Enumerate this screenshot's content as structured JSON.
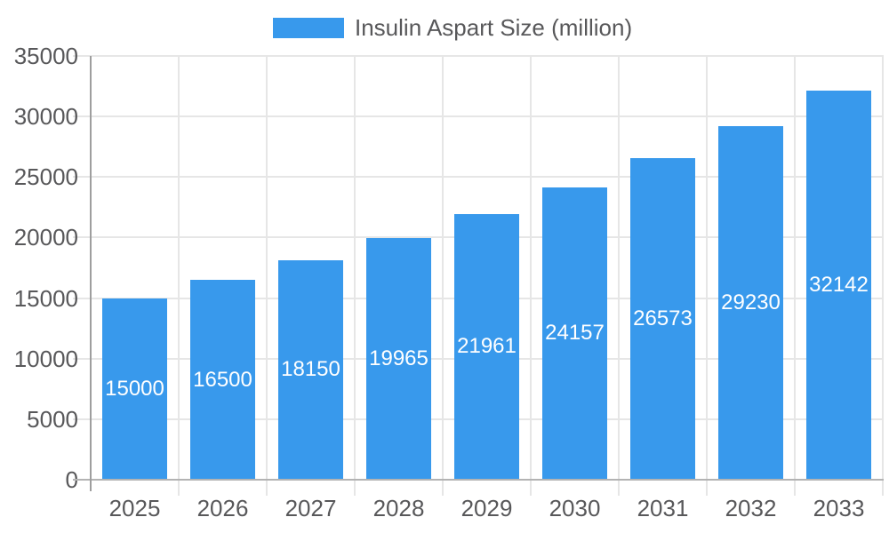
{
  "legend": {
    "label": "Insulin Aspart Size (million)"
  },
  "colors": {
    "bar": "#3899EC",
    "grid": "#E6E6E6",
    "x_axis": "#B3B3B3",
    "y_axis": "#9E9E9E",
    "axis_text": "#58585a",
    "bar_label_text": "#FFFFFF",
    "background": "#FFFFFF"
  },
  "chart_data": {
    "type": "bar",
    "title": "",
    "xlabel": "",
    "ylabel": "",
    "categories": [
      "2025",
      "2026",
      "2027",
      "2028",
      "2029",
      "2030",
      "2031",
      "2032",
      "2033"
    ],
    "series": [
      {
        "name": "Insulin Aspart Size (million)",
        "values": [
          15000,
          16500,
          18150,
          19965,
          21961,
          24157,
          26573,
          29230,
          32142
        ]
      }
    ],
    "bar_value_labels": [
      "15000",
      "16500",
      "18150",
      "19965",
      "21961",
      "24157",
      "26573",
      "29230",
      "32142"
    ],
    "ylim": [
      0,
      35000
    ],
    "yticks": [
      0,
      5000,
      10000,
      15000,
      20000,
      25000,
      30000,
      35000
    ],
    "grid": true,
    "legend_position": "top-center",
    "value_labels_inside_bars": true
  }
}
